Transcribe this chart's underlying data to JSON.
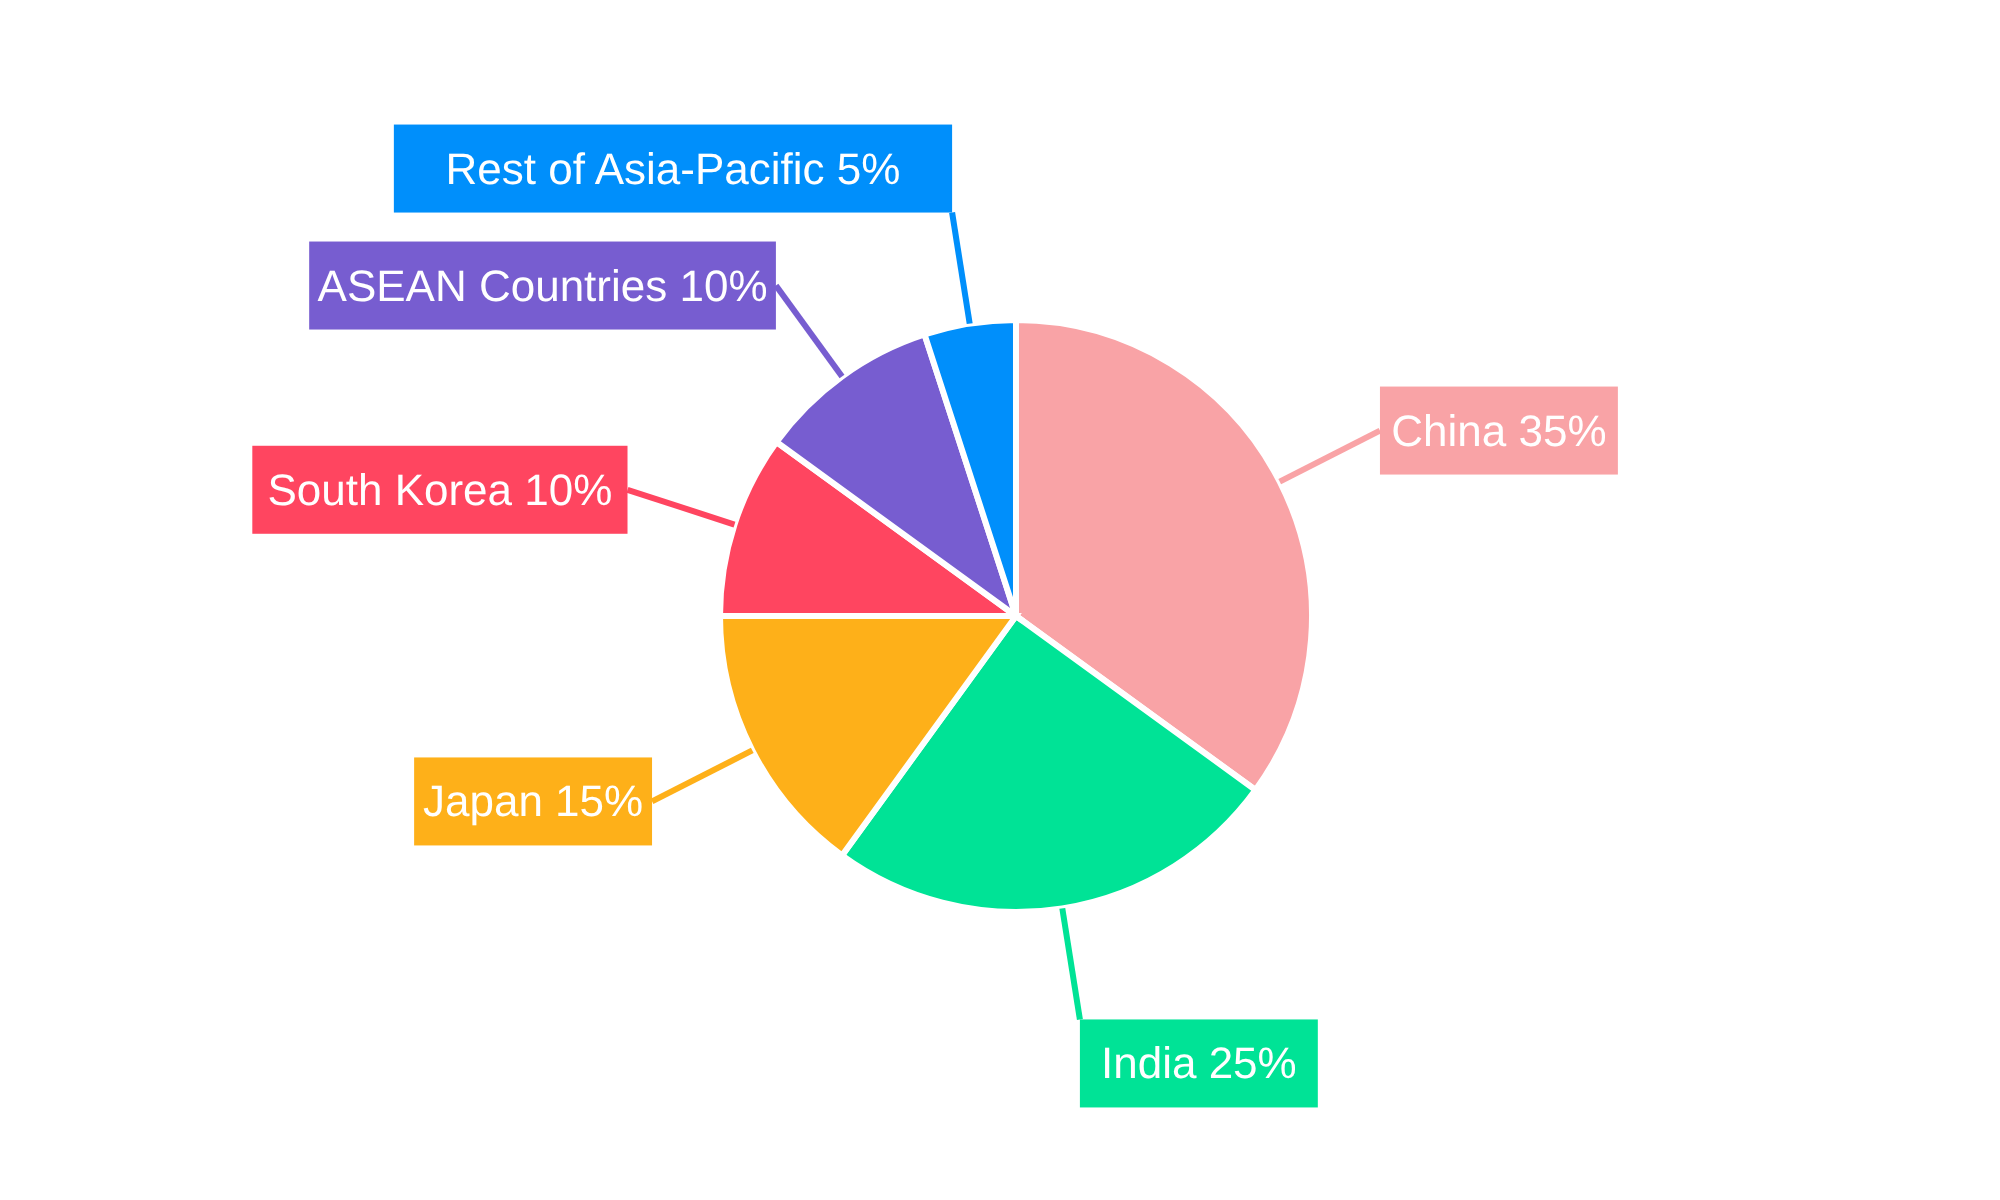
{
  "chart_data": {
    "type": "pie",
    "categories": [
      "China",
      "India",
      "Japan",
      "South Korea",
      "ASEAN Countries",
      "Rest of Asia-Pacific"
    ],
    "values": [
      35,
      25,
      15,
      10,
      10,
      5
    ],
    "value_labels": [
      "35%",
      "25%",
      "15%",
      "10%",
      "10%",
      "5%"
    ],
    "colors": [
      "#f9a3a6",
      "#00e396",
      "#feb019",
      "#ff4560",
      "#775dd0",
      "#008ffb"
    ]
  }
}
